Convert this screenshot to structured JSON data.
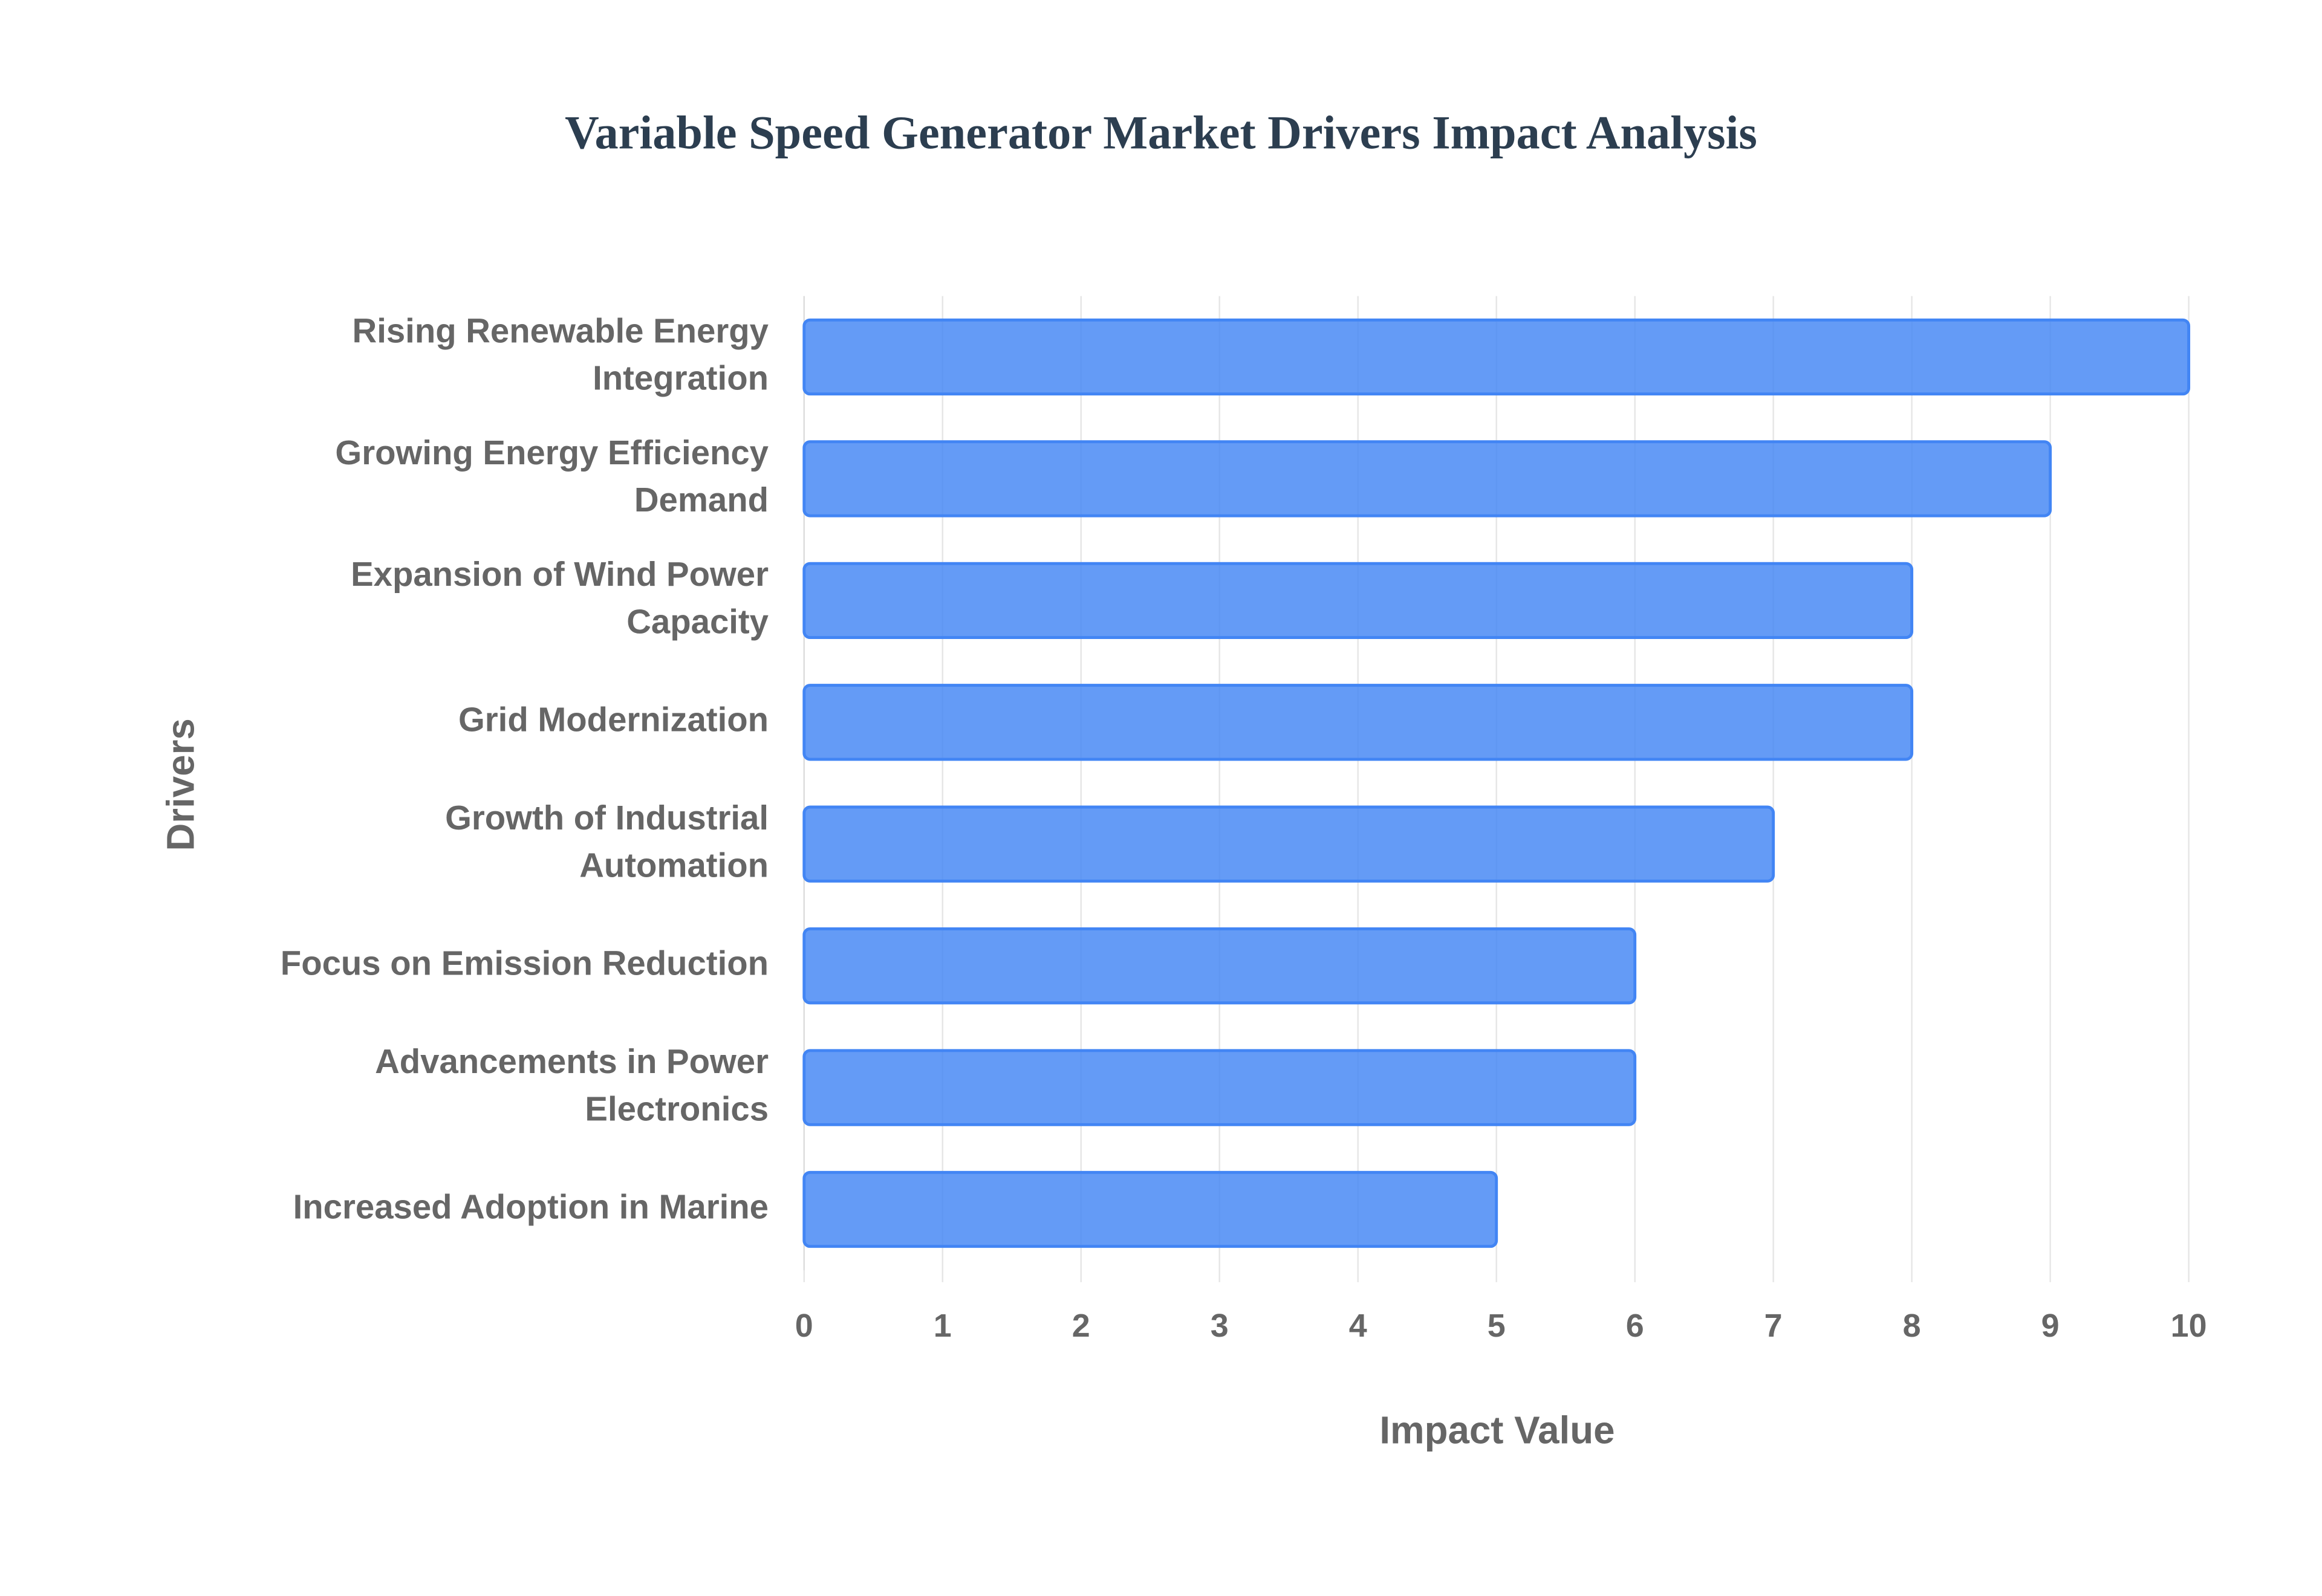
{
  "chart_data": {
    "type": "bar",
    "orientation": "horizontal",
    "title": "Variable Speed Generator Market Drivers Impact Analysis",
    "x_label": "Impact Value",
    "y_label": "Drivers",
    "categories": [
      "Rising Renewable Energy Integration",
      "Growing Energy Efficiency Demand",
      "Expansion of Wind Power Capacity",
      "Grid Modernization",
      "Growth of Industrial Automation",
      "Focus on Emission Reduction",
      "Advancements in Power Electronics",
      "Increased Adoption in Marine"
    ],
    "values": [
      10,
      9,
      8,
      8,
      7,
      6,
      6,
      5
    ],
    "color": "#4285f4",
    "xlim": [
      0,
      10
    ],
    "xticks": [
      0,
      1,
      2,
      3,
      4,
      5,
      6,
      7,
      8,
      9,
      10
    ],
    "grid": true
  }
}
